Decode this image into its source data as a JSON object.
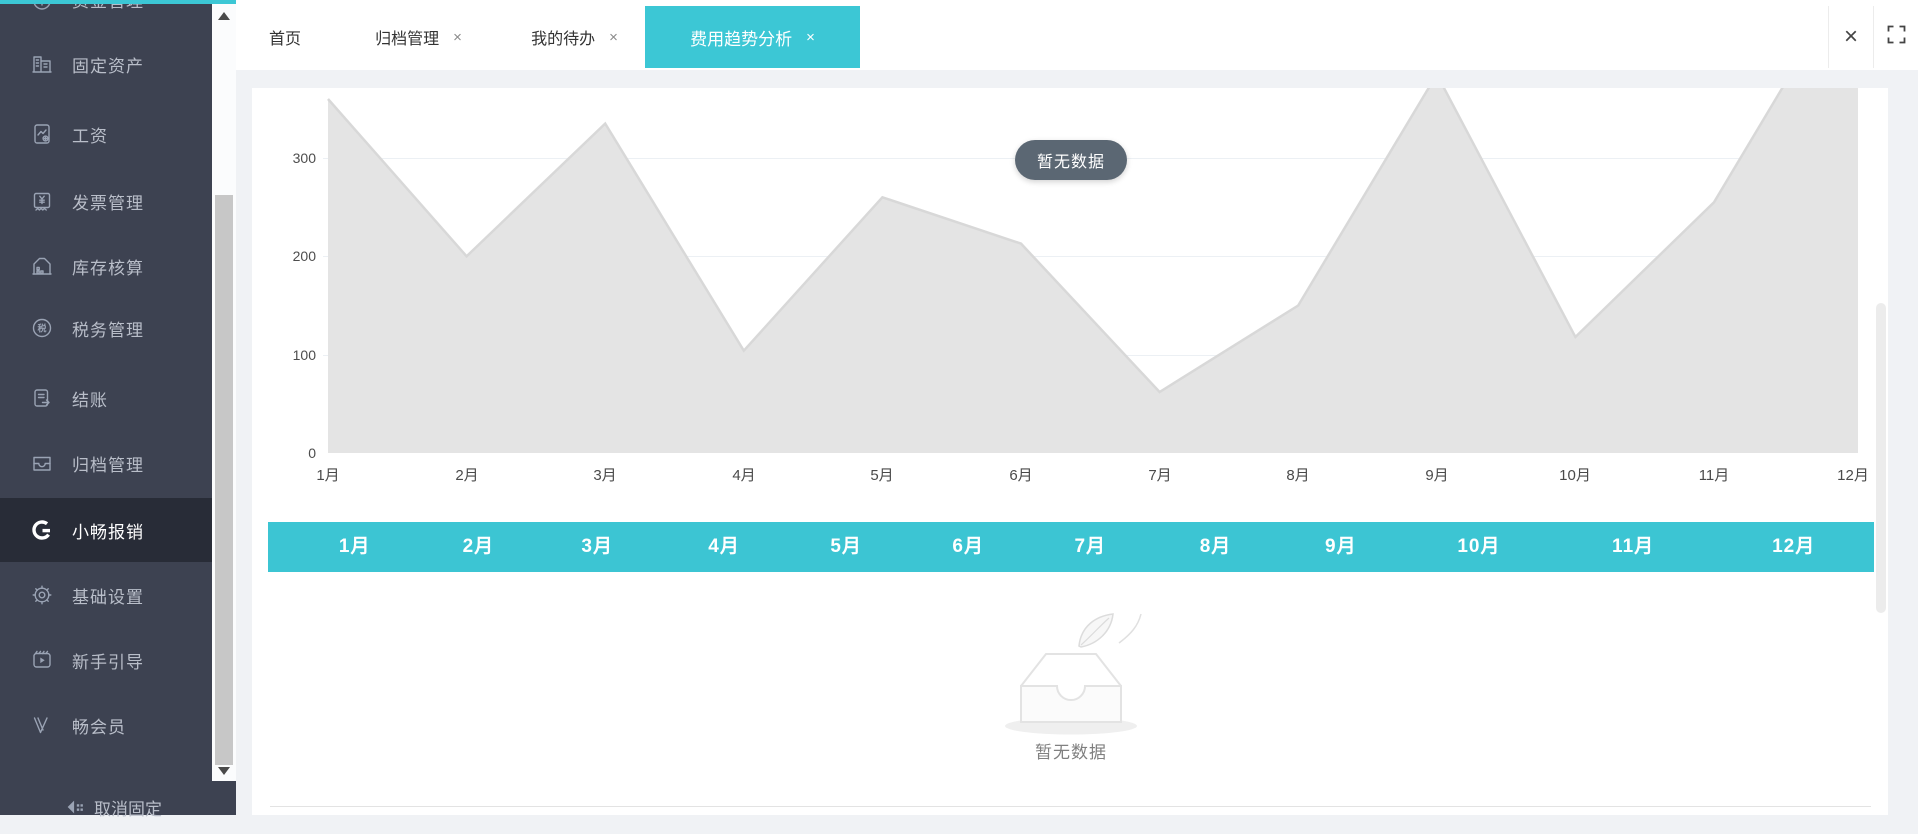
{
  "colors": {
    "accent": "#3cc7d5",
    "sidebar_bg": "#3d4251",
    "sidebar_active_bg": "#282c37",
    "badge_bg": "#5b6773",
    "area_fill": "#e4e4e4",
    "area_stroke": "#d8d8d8",
    "month_bar_bg": "#3cc5d3"
  },
  "sidebar": {
    "items": [
      {
        "label": "资金管理",
        "icon": "funds-icon"
      },
      {
        "label": "固定资产",
        "icon": "fixed-assets-icon"
      },
      {
        "label": "工资",
        "icon": "salary-icon"
      },
      {
        "label": "发票管理",
        "icon": "invoice-icon"
      },
      {
        "label": "库存核算",
        "icon": "inventory-icon"
      },
      {
        "label": "税务管理",
        "icon": "tax-icon"
      },
      {
        "label": "结账",
        "icon": "closing-icon"
      },
      {
        "label": "归档管理",
        "icon": "archive-icon"
      },
      {
        "label": "小畅报销",
        "icon": "xiaochang-logo-icon",
        "active": true
      },
      {
        "label": "基础设置",
        "icon": "settings-gear-icon"
      },
      {
        "label": "新手引导",
        "icon": "guide-video-icon"
      },
      {
        "label": "畅会员",
        "icon": "member-v-icon"
      }
    ],
    "bottom_item": {
      "label": "取消固定",
      "icon": "collapse-arrow-icon"
    }
  },
  "tabs": [
    {
      "label": "首页",
      "closable": false,
      "active": false
    },
    {
      "label": "归档管理",
      "closable": true,
      "active": false
    },
    {
      "label": "我的待办",
      "closable": true,
      "active": false
    },
    {
      "label": "费用趋势分析",
      "closable": true,
      "active": true
    }
  ],
  "tab_close_glyph": "×",
  "tabbar_actions": {
    "close_all_glyph": "×"
  },
  "chart_badge": "暂无数据",
  "empty_state_text": "暂无数据",
  "chart_data": {
    "type": "area",
    "categories": [
      "1月",
      "2月",
      "3月",
      "4月",
      "5月",
      "6月",
      "7月",
      "8月",
      "9月",
      "10月",
      "11月",
      "12月"
    ],
    "values": [
      360,
      200,
      335,
      104,
      260,
      213,
      62,
      150,
      385,
      118,
      255,
      500
    ],
    "yticks": [
      0,
      100,
      200,
      300
    ],
    "ylim": [
      0,
      371
    ],
    "grid": true,
    "legend": "none",
    "title": "",
    "xlabel": "",
    "ylabel": "",
    "clipped_points": [
      "9月",
      "12月"
    ],
    "no_data_badge": "暂无数据"
  },
  "month_bar": {
    "labels": [
      "1月",
      "2月",
      "3月",
      "4月",
      "5月",
      "6月",
      "7月",
      "8月",
      "9月",
      "10月",
      "11月",
      "12月"
    ]
  }
}
